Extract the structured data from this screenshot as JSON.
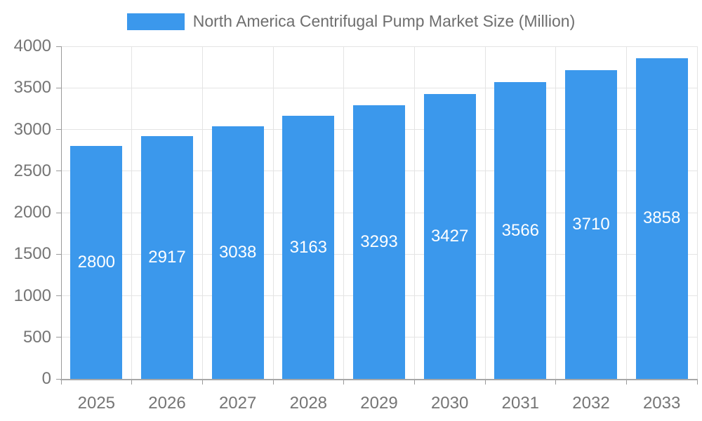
{
  "legend": {
    "label": "North America Centrifugal Pump Market Size (Million)"
  },
  "colors": {
    "bar": "#3b98ec",
    "bar_label_text": "#ffffff",
    "axis_line": "#9a9a9a",
    "grid_line": "#e4e4e4",
    "axis_text": "#757575",
    "legend_text": "#6e6e6e",
    "background": "#ffffff"
  },
  "chart_data": {
    "type": "bar",
    "title": "North America Centrifugal Pump Market Size (Million)",
    "categories": [
      "2025",
      "2026",
      "2027",
      "2028",
      "2029",
      "2030",
      "2031",
      "2032",
      "2033"
    ],
    "values": [
      2800,
      2917,
      3038,
      3163,
      3293,
      3427,
      3566,
      3710,
      3858
    ],
    "series_name": "North America Centrifugal Pump Market Size (Million)",
    "xlabel": "",
    "ylabel": "",
    "ylim": [
      0,
      4000
    ],
    "yticks": [
      0,
      500,
      1000,
      1500,
      2000,
      2500,
      3000,
      3500,
      4000
    ],
    "grid": true,
    "legend_position": "top-center",
    "bar_label_position": "inside-center"
  }
}
